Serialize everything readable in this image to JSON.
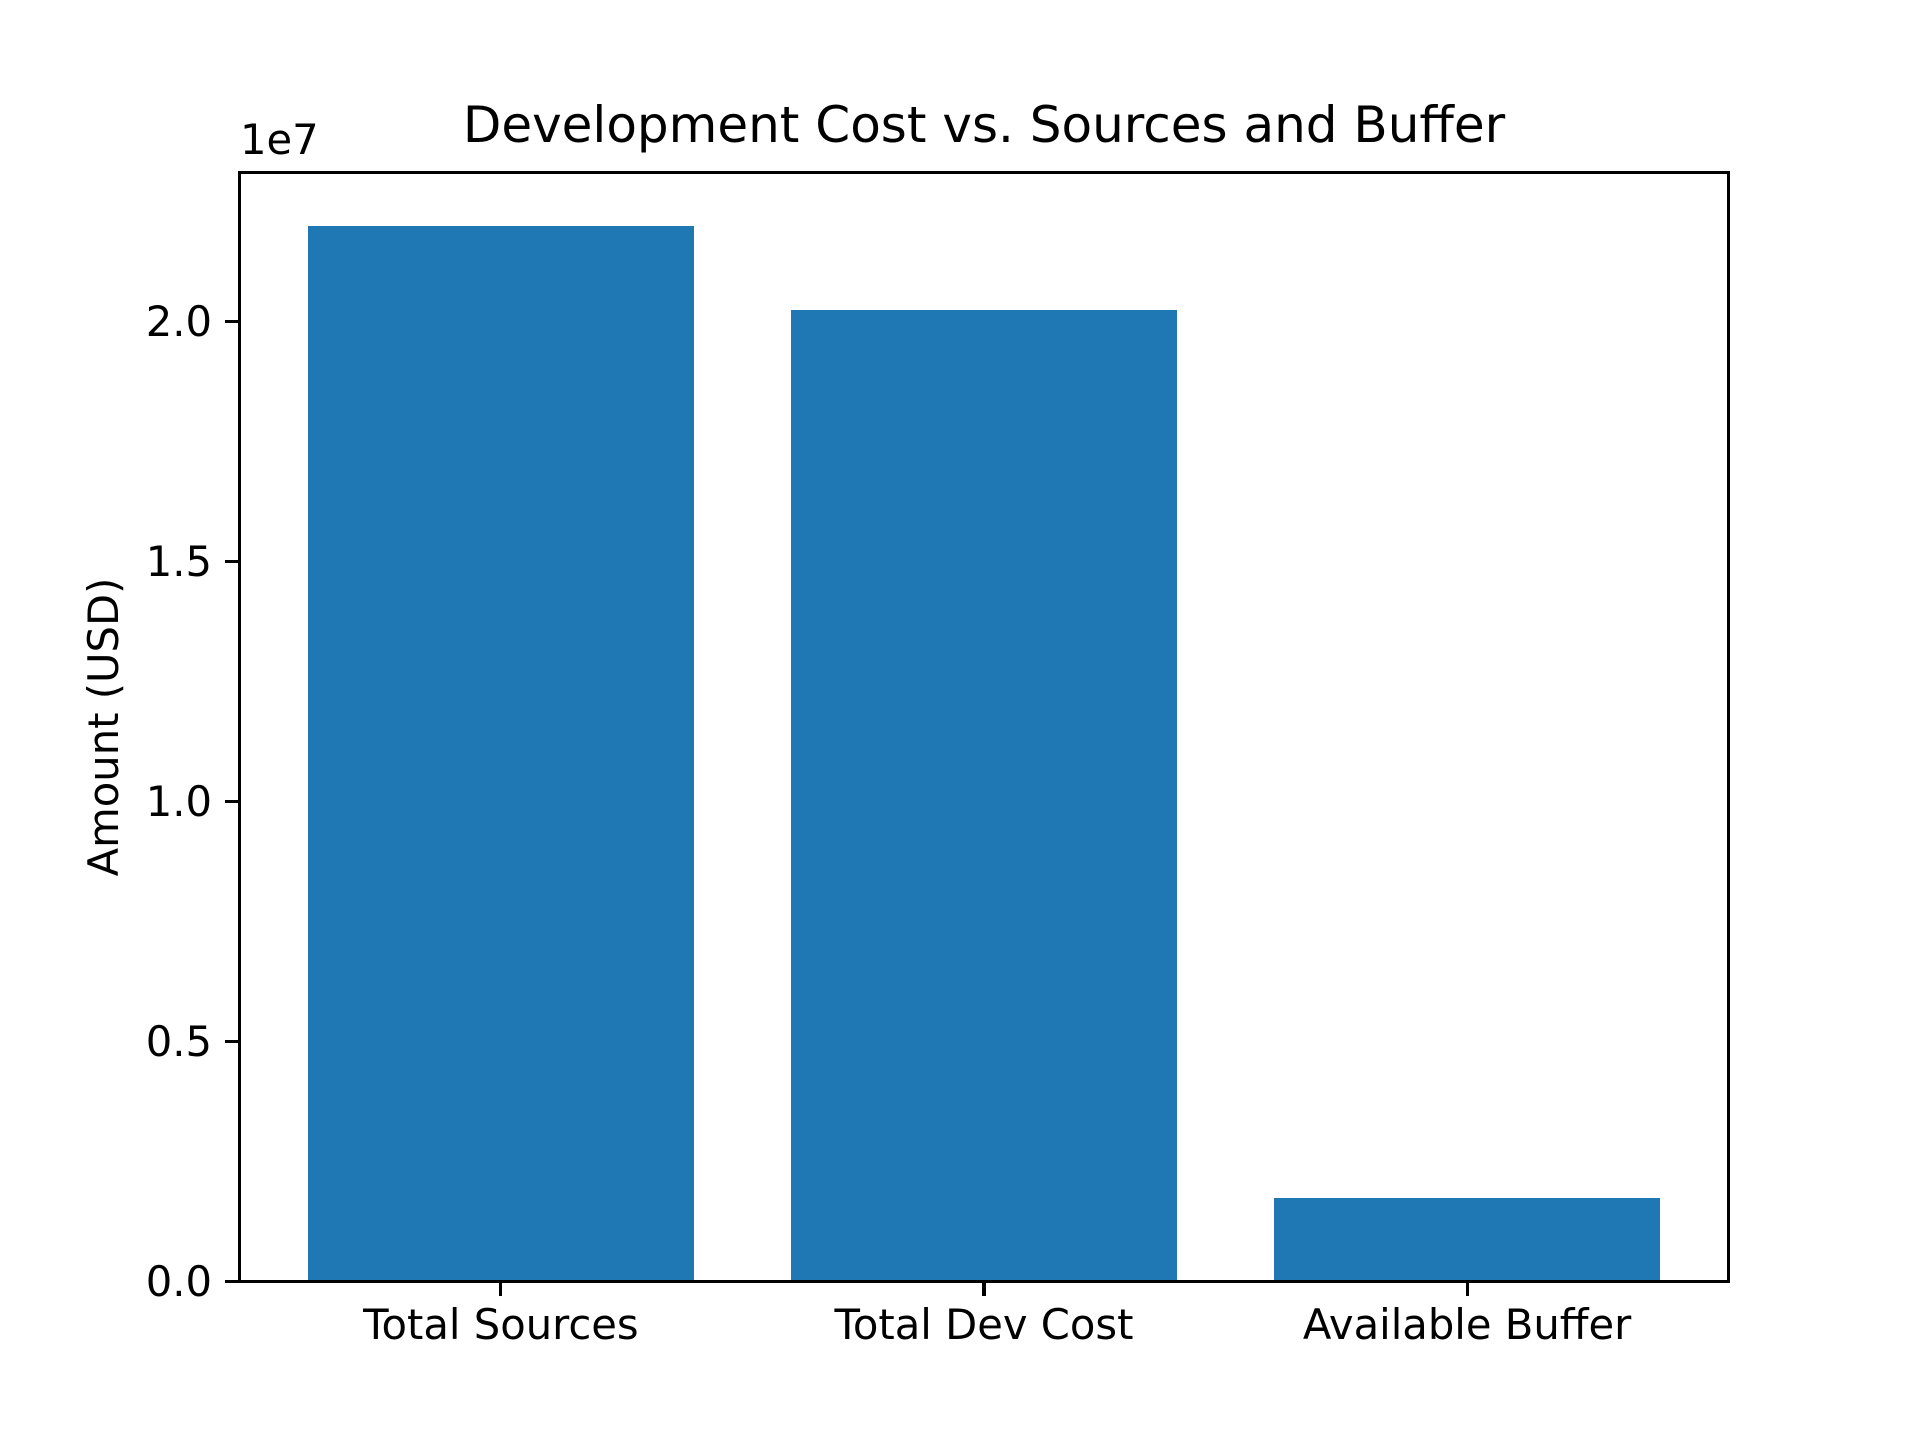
{
  "chart_data": {
    "type": "bar",
    "title": "Development Cost vs. Sources and Buffer",
    "xlabel": "",
    "ylabel": "Amount (USD)",
    "y_offset_text": "1e7",
    "categories": [
      "Total Sources",
      "Total Dev Cost",
      "Available Buffer"
    ],
    "values": [
      22000000,
      20250000,
      1750000
    ],
    "ylim": [
      0,
      23100000
    ],
    "y_ticks": {
      "values": [
        0,
        5000000,
        10000000,
        15000000,
        20000000
      ],
      "labels": [
        "0.0",
        "0.5",
        "1.0",
        "1.5",
        "2.0"
      ]
    },
    "bar_color": "#1f77b4",
    "bar_width_fraction": 0.8,
    "grid": false,
    "legend": "none",
    "background_color": "#ffffff",
    "text_color": "#000000"
  }
}
